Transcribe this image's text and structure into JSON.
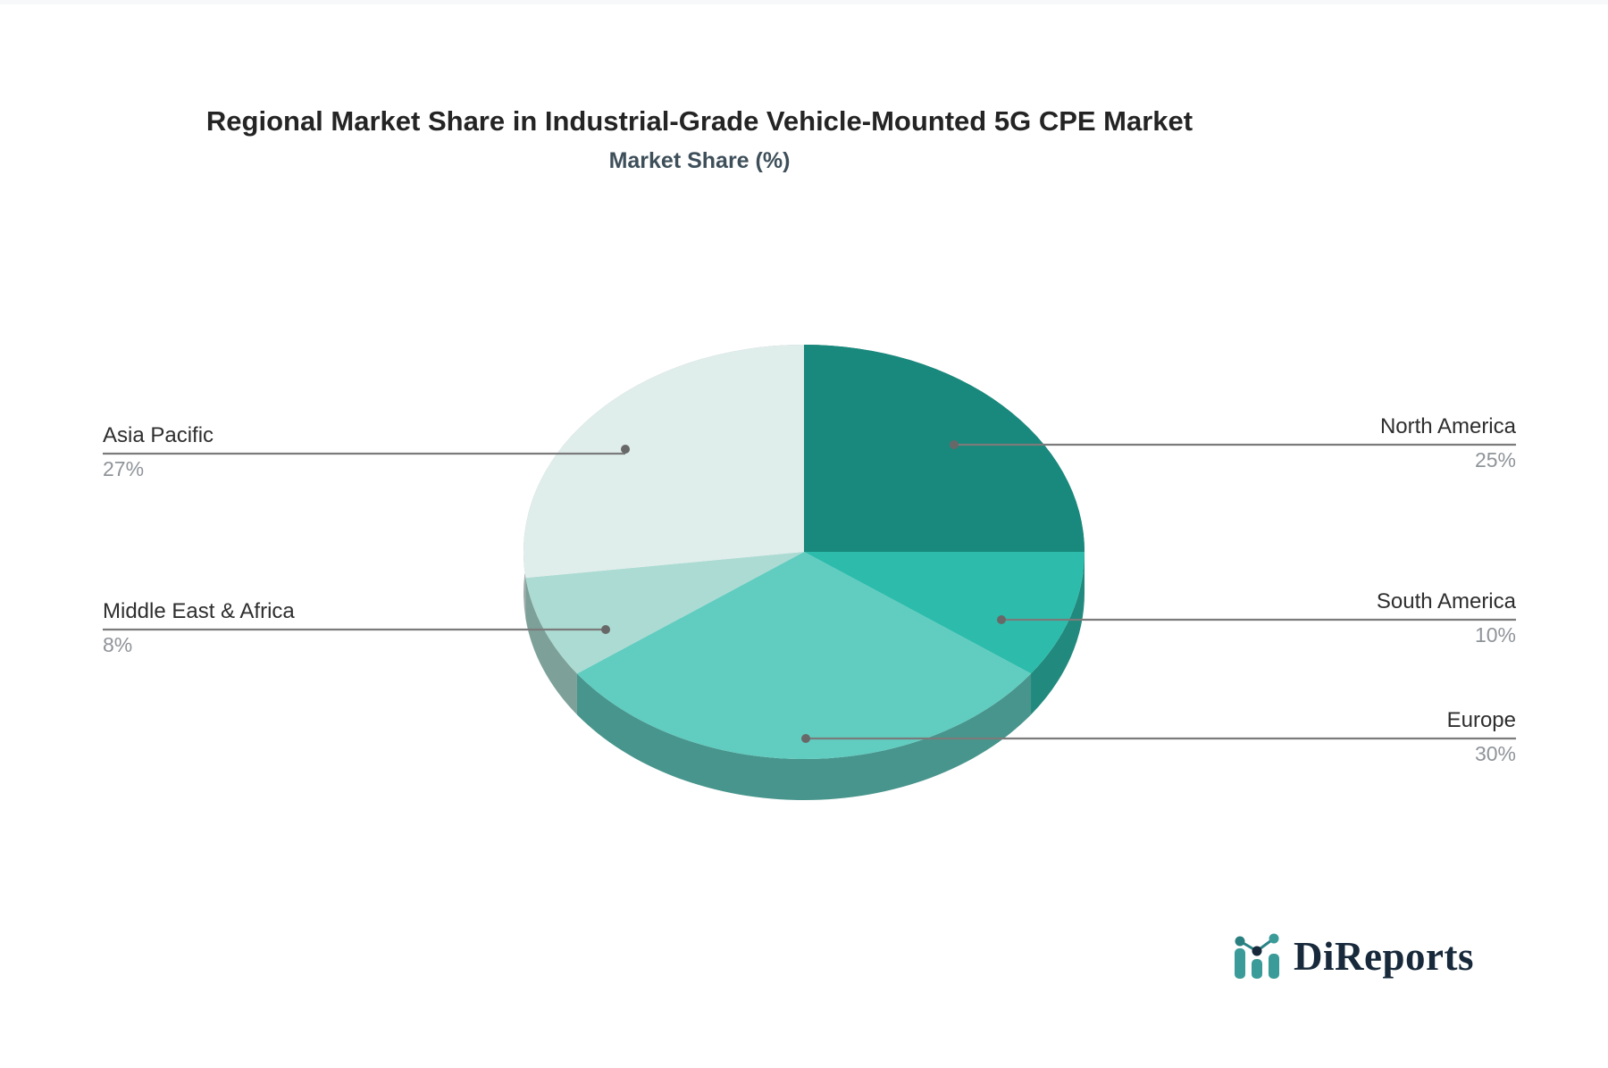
{
  "chart_data": {
    "type": "pie",
    "style": "3d",
    "title": "Regional Market Share in Industrial-Grade Vehicle-Mounted 5G CPE Market",
    "subtitle": "Market Share (%)",
    "unit": "%",
    "start_angle_deg": 0,
    "direction": "clockwise",
    "legend_position": "callout-labels",
    "segments": [
      {
        "label": "North America",
        "value": 25,
        "display": "25%",
        "color": "#19897d",
        "side": "right"
      },
      {
        "label": "South America",
        "value": 10,
        "display": "10%",
        "color": "#2dbcab",
        "side": "right"
      },
      {
        "label": "Europe",
        "value": 30,
        "display": "30%",
        "color": "#61ccc0",
        "side": "right"
      },
      {
        "label": "Middle East & Africa",
        "value": 8,
        "display": "8%",
        "color": "#abdbd2",
        "side": "left"
      },
      {
        "label": "Asia Pacific",
        "value": 27,
        "display": "27%",
        "color": "#dfedeb",
        "side": "left"
      }
    ],
    "colors": {
      "leader_line": "#7b7b7b",
      "leader_dot": "#686868",
      "label_text": "#2e2e2e",
      "value_text": "#8f9499",
      "title_text": "#242424",
      "subtitle_text": "#3e4f5a"
    }
  },
  "branding": {
    "logo_text": "DiReports",
    "logo_icon": "bar-chart-icon",
    "logo_teal": "#3a9b99",
    "logo_navy": "#17293b"
  }
}
